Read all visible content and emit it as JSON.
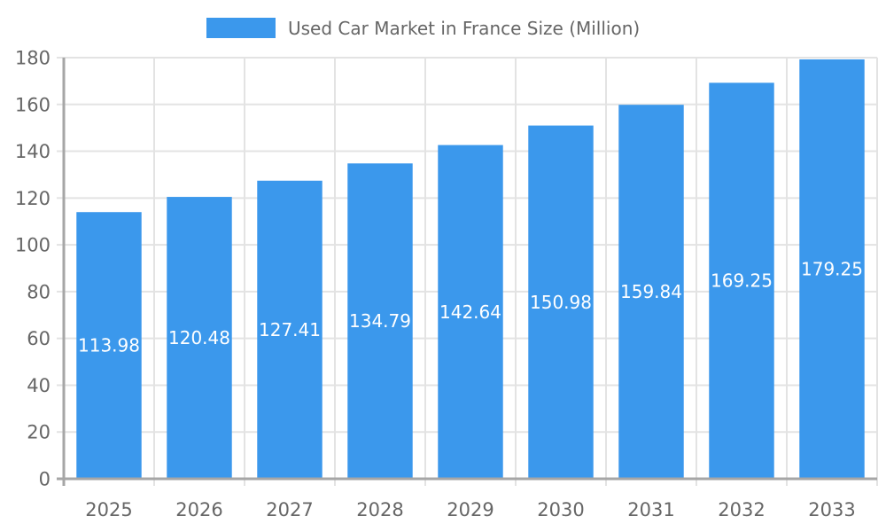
{
  "legend": {
    "label": "Used Car Market in France Size (Million)"
  },
  "colors": {
    "bar": "#3b98ec",
    "grid": "#e3e3e3",
    "axis": "#a6a6a6",
    "text": "#666666",
    "bar_label": "#ffffff",
    "background": "#ffffff"
  },
  "chart_data": {
    "type": "bar",
    "title": "Used Car Market in France Size (Million)",
    "categories": [
      "2025",
      "2026",
      "2027",
      "2028",
      "2029",
      "2030",
      "2031",
      "2032",
      "2033"
    ],
    "values": [
      113.98,
      120.48,
      127.41,
      134.79,
      142.64,
      150.98,
      159.84,
      169.25,
      179.25
    ],
    "series": [
      {
        "name": "Used Car Market in France Size (Million)",
        "values": [
          113.98,
          120.48,
          127.41,
          134.79,
          142.64,
          150.98,
          159.84,
          169.25,
          179.25
        ]
      }
    ],
    "value_labels": [
      "113.98",
      "120.48",
      "127.41",
      "134.79",
      "142.64",
      "150.98",
      "159.84",
      "169.25",
      "179.25"
    ],
    "xlabel": "",
    "ylabel": "",
    "ylim": [
      0,
      180
    ],
    "ytick_step": 20,
    "ytick_labels": [
      "0",
      "20",
      "40",
      "60",
      "80",
      "100",
      "120",
      "140",
      "160",
      "180"
    ],
    "grid": true,
    "legend_position": "top",
    "value_label_position": "inside-center"
  }
}
